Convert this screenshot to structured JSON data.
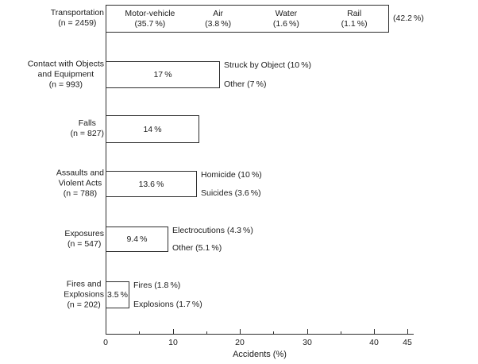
{
  "chart_data": {
    "type": "bar",
    "orientation": "horizontal",
    "title": "",
    "xlabel": "Accidents (%)",
    "ylabel": "",
    "xlim": [
      0,
      45
    ],
    "xticks": [
      0,
      10,
      20,
      30,
      40,
      45
    ],
    "minor_ticks": [
      5,
      15,
      25,
      35
    ],
    "grid": false,
    "bar_fill": "#ffffff",
    "bar_border": "#2e2e2e",
    "categories": [
      "Transportation",
      "Contact with Objects and Equipment",
      "Falls",
      "Assaults and Violent Acts",
      "Exposures",
      "Fires and Explosions"
    ],
    "values": [
      42.2,
      17,
      14,
      13.6,
      9.4,
      3.5
    ],
    "groups": [
      {
        "label_lines": [
          "Transportation",
          "(n = 2459)"
        ],
        "n": 2459,
        "pct": 42.2,
        "right_text": "(42.2 %)",
        "segments": [
          {
            "line1": "Motor-vehicle",
            "line2": "(35.7 %)",
            "name": "Motor-vehicle",
            "pct": 35.7
          },
          {
            "line1": "Air",
            "line2": "(3.8 %)",
            "name": "Air",
            "pct": 3.8
          },
          {
            "line1": "Water",
            "line2": "(1.6 %)",
            "name": "Water",
            "pct": 1.6
          },
          {
            "line1": "Rail",
            "line2": "(1.1 %)",
            "name": "Rail",
            "pct": 1.1
          }
        ]
      },
      {
        "label_lines": [
          "Contact with Objects",
          "and Equipment",
          "(n = 993)"
        ],
        "n": 993,
        "pct": 17,
        "bar_text": "17 %",
        "callout_top": "Struck by Object (10 %)",
        "callout_bottom": "Other (7 %)",
        "sub": [
          {
            "name": "Struck by Object",
            "pct": 10
          },
          {
            "name": "Other",
            "pct": 7
          }
        ]
      },
      {
        "label_lines": [
          "Falls",
          "(n = 827)"
        ],
        "n": 827,
        "pct": 14,
        "bar_text": "14 %"
      },
      {
        "label_lines": [
          "Assaults and",
          "Violent Acts",
          "(n = 788)"
        ],
        "n": 788,
        "pct": 13.6,
        "bar_text": "13.6 %",
        "callout_top": "Homicide (10 %)",
        "callout_bottom": "Suicides (3.6 %)",
        "sub": [
          {
            "name": "Homicide",
            "pct": 10
          },
          {
            "name": "Suicides",
            "pct": 3.6
          }
        ]
      },
      {
        "label_lines": [
          "Exposures",
          "(n = 547)"
        ],
        "n": 547,
        "pct": 9.4,
        "bar_text": "9.4 %",
        "callout_top": "Electrocutions (4.3 %)",
        "callout_bottom": "Other (5.1 %)",
        "sub": [
          {
            "name": "Electrocutions",
            "pct": 4.3
          },
          {
            "name": "Other",
            "pct": 5.1
          }
        ]
      },
      {
        "label_lines": [
          "Fires and",
          "Explosions",
          "(n = 202)"
        ],
        "n": 202,
        "pct": 3.5,
        "bar_text": "3.5 %",
        "callout_top": "Fires (1.8 %)",
        "callout_bottom": "Explosions (1.7 %)",
        "sub": [
          {
            "name": "Fires",
            "pct": 1.8
          },
          {
            "name": "Explosions",
            "pct": 1.7
          }
        ]
      }
    ]
  }
}
